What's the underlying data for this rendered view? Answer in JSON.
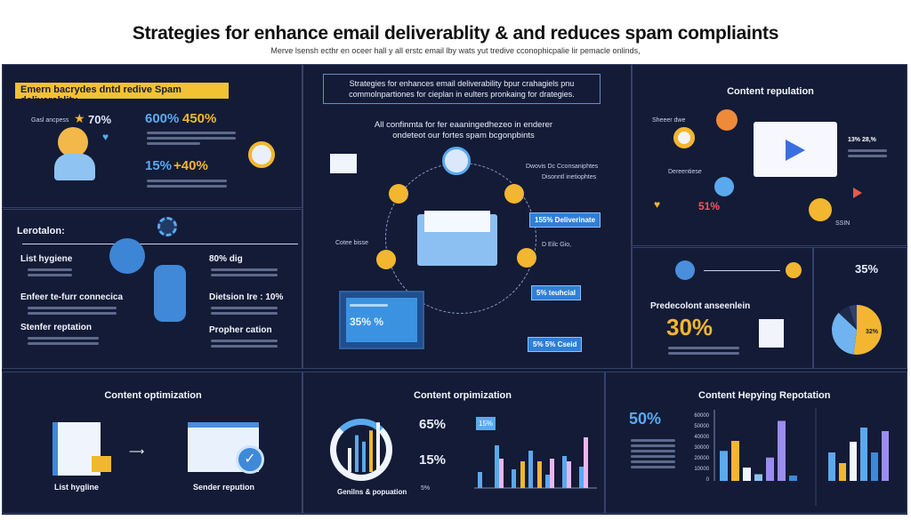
{
  "header": {
    "title": "Strategies for enhance email deliverablity & and reduces spam compliaints",
    "subtitle": "Merve lsensh ecthr en oceer hall y all erstc email lby wats yut tredive cconophicpalie lir pemacle onlinds,"
  },
  "colors": {
    "background": "#121a33",
    "accent_yellow": "#f2b630",
    "accent_blue": "#5aa9ef",
    "panel_border": "#35426a"
  },
  "panel1": {
    "banner": "Emern bacrydes dntd redive Spam deliverablity",
    "label": "Gasl ancpess",
    "stat1": "70%",
    "stat2a": "600%",
    "stat2b": "450%",
    "stat3a": "15%",
    "stat3b": "+40%"
  },
  "panel2": {
    "heading": "Lerotalon:",
    "items": [
      "List hygiene",
      "Enfeer te-furr connecica",
      "Stenfer reptation"
    ],
    "right_items": [
      "80% dig",
      "Dietsion Ire : 10%",
      "Propher cation"
    ]
  },
  "center": {
    "box_text": "Strategies for enhances email deliverability bpur crahagiels pnu commolnpartiones for cieplan in eulters pronkaing for drategies.",
    "caption": "All confinmta for fer eaaningedhezeo in enderer ondeteot our fortes spam bcgonpbints",
    "labels": [
      "Cotee bisse",
      "Dwovis Dc Cconsaniphtes",
      "Disonntl inetiophtes",
      "D Eilc Gio,"
    ],
    "tags": [
      "155% Deliverinate",
      "5% teuhcial",
      "5% 5% Cseid"
    ],
    "screen_stat": "35% %"
  },
  "content_reputation": {
    "heading": "Content repulation",
    "label1": "Sheeer dwe",
    "label2": "Dereentiese",
    "stat_red": "51%",
    "stat_right": "13% 28,%",
    "label3": "SSIN"
  },
  "panel5": {
    "heading": "Predecolont anseenlein",
    "stat": "30%"
  },
  "panel6": {
    "stat": "35%",
    "pie_label": "32%",
    "pie_values": [
      52,
      35,
      8,
      5
    ]
  },
  "bottom1": {
    "heading": "Content optimization",
    "label1": "List hygline",
    "label2": "Sender repution"
  },
  "bottom2": {
    "heading": "Content orpimization",
    "donut_label": "Genilns & popuation",
    "stat1": "65%",
    "stat2": "15%",
    "callout": "15%",
    "legend": "5%",
    "bars": {
      "a": [
        30,
        80,
        35,
        70,
        25,
        60,
        40
      ],
      "b": [
        0,
        55,
        0,
        0,
        55,
        50,
        95
      ],
      "c": [
        0,
        0,
        50,
        50,
        0,
        0,
        0
      ]
    }
  },
  "bottom3": {
    "heading": "Content  Hepying Repotation",
    "stat": "50%",
    "yticks": [
      "60000",
      "50000",
      "40000",
      "30000",
      "20000",
      "10000",
      "0"
    ],
    "bars": [
      45,
      60,
      20,
      10,
      35,
      90,
      8
    ],
    "bars2": [
      40,
      25,
      55,
      75,
      40,
      70
    ]
  }
}
